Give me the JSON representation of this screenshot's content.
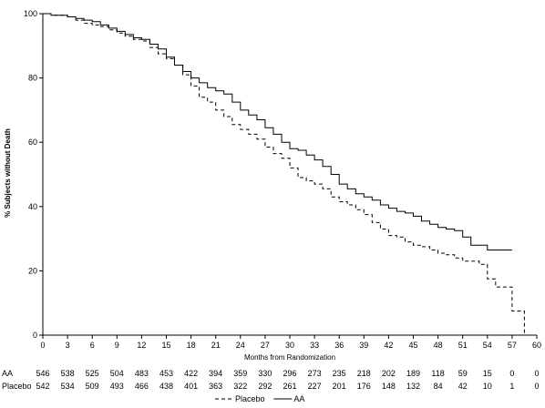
{
  "chart_data": {
    "type": "line",
    "title": "",
    "xlabel": "Months from Randomization",
    "ylabel": "% Subjects without Death",
    "xlim": [
      0,
      60
    ],
    "ylim": [
      0,
      100
    ],
    "x_ticks": [
      0,
      3,
      6,
      9,
      12,
      15,
      18,
      21,
      24,
      27,
      30,
      33,
      36,
      39,
      42,
      45,
      48,
      51,
      54,
      57,
      60
    ],
    "y_ticks": [
      0,
      20,
      40,
      60,
      80,
      100
    ],
    "grid": false,
    "legend_position": "bottom-center",
    "series": [
      {
        "name": "AA",
        "line_style": "solid",
        "color": "#000000",
        "points": [
          [
            0,
            100
          ],
          [
            1,
            99.5
          ],
          [
            2,
            99.5
          ],
          [
            3,
            99
          ],
          [
            4,
            98.5
          ],
          [
            5,
            98
          ],
          [
            6,
            97.5
          ],
          [
            7,
            96.5
          ],
          [
            8,
            95.5
          ],
          [
            9,
            94.5
          ],
          [
            10,
            93.5
          ],
          [
            11,
            92.5
          ],
          [
            12,
            92
          ],
          [
            13,
            90.5
          ],
          [
            14,
            89
          ],
          [
            15,
            86.5
          ],
          [
            16,
            84
          ],
          [
            17,
            82
          ],
          [
            18,
            80
          ],
          [
            19,
            78.5
          ],
          [
            20,
            77
          ],
          [
            21,
            76
          ],
          [
            22,
            75
          ],
          [
            23,
            72.5
          ],
          [
            24,
            70
          ],
          [
            25,
            68.5
          ],
          [
            26,
            67
          ],
          [
            27,
            64.5
          ],
          [
            28,
            62.5
          ],
          [
            29,
            60
          ],
          [
            30,
            58
          ],
          [
            31,
            57.5
          ],
          [
            32,
            56
          ],
          [
            33,
            54.5
          ],
          [
            34,
            52.5
          ],
          [
            35,
            50
          ],
          [
            36,
            47
          ],
          [
            37,
            45.5
          ],
          [
            38,
            44
          ],
          [
            39,
            43
          ],
          [
            40,
            42
          ],
          [
            41,
            40.5
          ],
          [
            42,
            39.5
          ],
          [
            43,
            38.5
          ],
          [
            44,
            38
          ],
          [
            45,
            37
          ],
          [
            46,
            35.5
          ],
          [
            47,
            34.5
          ],
          [
            48,
            33.5
          ],
          [
            49,
            33
          ],
          [
            50,
            32.5
          ],
          [
            51,
            30.5
          ],
          [
            52,
            28
          ],
          [
            53,
            28
          ],
          [
            54,
            26.5
          ],
          [
            56,
            26.5
          ],
          [
            57,
            26.5
          ]
        ]
      },
      {
        "name": "Placebo",
        "line_style": "dashed",
        "color": "#000000",
        "points": [
          [
            0,
            100
          ],
          [
            1,
            99.5
          ],
          [
            2,
            99.5
          ],
          [
            3,
            99
          ],
          [
            4,
            98
          ],
          [
            5,
            97
          ],
          [
            6,
            96.5
          ],
          [
            7,
            96
          ],
          [
            8,
            95
          ],
          [
            9,
            94
          ],
          [
            10,
            93
          ],
          [
            11,
            92
          ],
          [
            12,
            91.5
          ],
          [
            13,
            89.5
          ],
          [
            14,
            87.5
          ],
          [
            15,
            86
          ],
          [
            16,
            84
          ],
          [
            17,
            81
          ],
          [
            18,
            77.5
          ],
          [
            19,
            74
          ],
          [
            20,
            72.5
          ],
          [
            21,
            70
          ],
          [
            22,
            68
          ],
          [
            23,
            65.5
          ],
          [
            24,
            64
          ],
          [
            25,
            62.5
          ],
          [
            26,
            61
          ],
          [
            27,
            58.5
          ],
          [
            28,
            56.5
          ],
          [
            29,
            55
          ],
          [
            30,
            52
          ],
          [
            31,
            49
          ],
          [
            32,
            48
          ],
          [
            33,
            47
          ],
          [
            34,
            45.5
          ],
          [
            35,
            43
          ],
          [
            36,
            41.5
          ],
          [
            37,
            40.5
          ],
          [
            38,
            39
          ],
          [
            39,
            37.5
          ],
          [
            40,
            35
          ],
          [
            41,
            33
          ],
          [
            42,
            31
          ],
          [
            43,
            30.5
          ],
          [
            44,
            29
          ],
          [
            45,
            28
          ],
          [
            46,
            27.5
          ],
          [
            47,
            26.5
          ],
          [
            48,
            25.5
          ],
          [
            49,
            25
          ],
          [
            50,
            24
          ],
          [
            51,
            23
          ],
          [
            52,
            23
          ],
          [
            53,
            22
          ],
          [
            54,
            17.5
          ],
          [
            55,
            15
          ],
          [
            57,
            15
          ],
          [
            57,
            7.5
          ],
          [
            58.5,
            7.5
          ],
          [
            58.5,
            0
          ]
        ]
      }
    ],
    "risk_table": {
      "rows": [
        {
          "label": "AA",
          "counts": [
            "546",
            "538",
            "525",
            "504",
            "483",
            "453",
            "422",
            "394",
            "359",
            "330",
            "296",
            "273",
            "235",
            "218",
            "202",
            "189",
            "118",
            "59",
            "15",
            "0",
            "0"
          ]
        },
        {
          "label": "Placebo",
          "counts": [
            "542",
            "534",
            "509",
            "493",
            "466",
            "438",
            "401",
            "363",
            "322",
            "292",
            "261",
            "227",
            "201",
            "176",
            "148",
            "132",
            "84",
            "42",
            "10",
            "1",
            "0"
          ]
        }
      ]
    },
    "legend": [
      {
        "label": "Placebo",
        "line_style": "dashed"
      },
      {
        "label": "AA",
        "line_style": "solid"
      }
    ]
  }
}
